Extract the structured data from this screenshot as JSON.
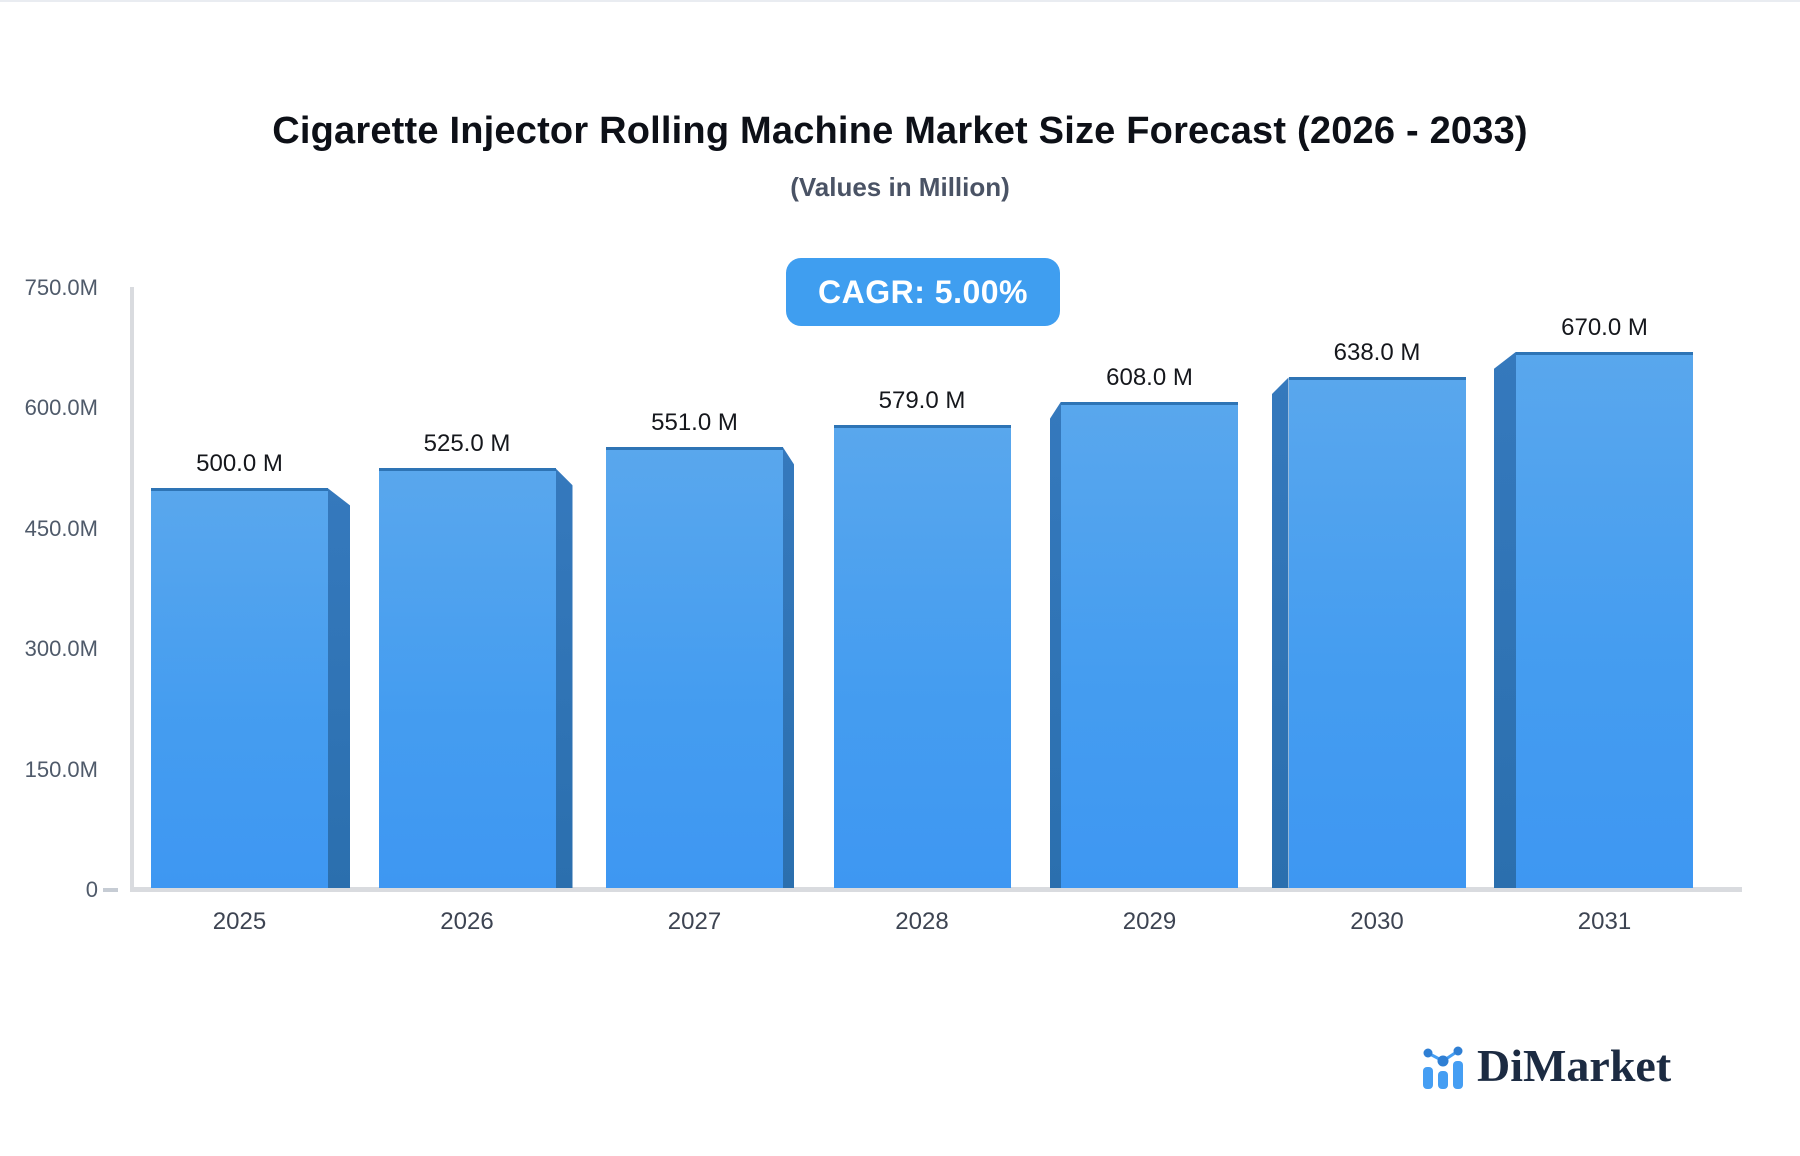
{
  "header": {
    "title": "Cigarette Injector Rolling Machine Market Size Forecast (2026 - 2033)",
    "subtitle": "(Values in Million)"
  },
  "cagr_badge": {
    "label": "CAGR: 5.00%",
    "background_color": "#3f9ef0",
    "text_color": "#ffffff"
  },
  "chart_data": {
    "type": "bar",
    "title": "Cigarette Injector Rolling Machine Market Size Forecast (2026 - 2033)",
    "subtitle": "(Values in Million)",
    "unit": "Million",
    "categories": [
      "2025",
      "2026",
      "2027",
      "2028",
      "2029",
      "2030",
      "2031"
    ],
    "values": [
      500,
      525,
      551,
      579,
      608,
      638,
      670
    ],
    "value_labels": [
      "500.0 M",
      "525.0 M",
      "551.0 M",
      "579.0 M",
      "608.0 M",
      "638.0 M",
      "670.0 M"
    ],
    "annotation": "CAGR: 5.00%",
    "xlabel": "",
    "ylabel": "",
    "ylim": [
      0,
      750
    ],
    "y_ticks": [
      {
        "label": "750.0M",
        "value": 750
      },
      {
        "label": "600.0M",
        "value": 600
      },
      {
        "label": "450.0M",
        "value": 450
      },
      {
        "label": "300.0M",
        "value": 300
      },
      {
        "label": "150.0M",
        "value": 150
      },
      {
        "label": "0",
        "value": 0
      }
    ],
    "grid": false,
    "legend": false,
    "bar_style_3d": true,
    "colors": {
      "bar_face_top": "#59a7ed",
      "bar_face_bottom": "#3e97f2",
      "bar_top_edge": "#2e74b5",
      "bar_side": "#2e73b4",
      "axis_line": "#d9dbdf"
    }
  },
  "logo": {
    "text": "DiMarket",
    "icon": "bar-chart-logo-icon",
    "icon_color": "#459ef3",
    "dot_color": "#2f7fd4",
    "text_color": "#1c2b42"
  }
}
